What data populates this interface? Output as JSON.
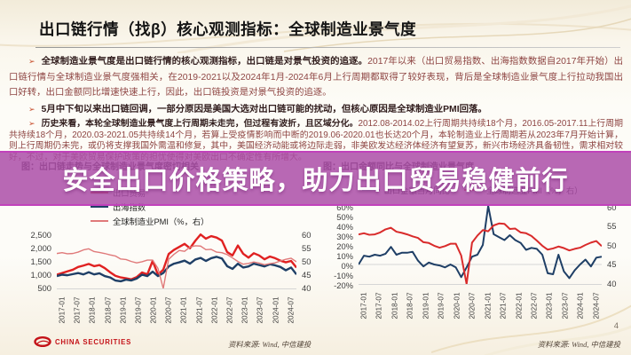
{
  "slide": {
    "title": "出口链行情（找β）核心观测指标：全球制造业景气度",
    "bullet_marker": "➢",
    "bullets": [
      {
        "lead": "全球制造业景气度是出口链行情的核心观测指标，出口链是对景气投资的追逐。",
        "rest": "2017年以来（出口贸易指数、出海指数数据自2017年开始）出口链行情与全球制造业景气度强相关，在2019-2021以及2024年1月-2024年6月上行周期都取得了较好表现，背后是全球制造业景气度上行拉动我国出口好转，出口金额同比增速快速上行，因此，出口链投资是对景气投资的追逐。"
      },
      {
        "lead": "5月中下旬以来出口链回调，一部分原因是美国大选对出口链可能的扰动，但核心原因是全球制造业PMI回落。",
        "rest": ""
      },
      {
        "lead": "历史来看，本轮全球制造业景气度上行周期未走完，但过程有波折，且区域分化。",
        "rest": "2012.08-2014.02上行周期共持续18个月，2016.05-2017.11上行周期共持续18个月，2020.03-2021.05共持续14个月，若算上受疫情影响而中断的2019.06-2020.01也长达20个月，本轮制造业上行周期若从2023年7月开始计算，则上行周期仍未完，或仍将支撑我国外需温和修复，其中，美国经济动能或将边际走弱，非美欧发达经济体经济有望复苏，新兴市场经济具备韧性，需求相对较好，不过，对于美欧贸易保护政策的担忧使得对美欧出口不确定性有所增大。"
      }
    ]
  },
  "banner": {
    "text": "安全出口价格策略，助力出口贸易稳健前行",
    "overlay_color": "#ac4ea8"
  },
  "footer": {
    "logo_text": "CHINA SECURITIES",
    "source_left": "资料来源: Wind, 中信建投",
    "source_right": "资料来源: Wind, 中信建投",
    "page_number": "4"
  },
  "chart_data": [
    {
      "type": "line",
      "title": "图：出口链走势与全球制造业景气度密切相关",
      "legend_position": "top-left-stacked",
      "x_sampling": "2017-01 to 2024-07, bimonthly (46 points)",
      "x_tick_labels": [
        "2017-01",
        "2017-07",
        "2018-01",
        "2018-07",
        "2019-01",
        "2019-07",
        "2020-01",
        "2020-07",
        "2021-01",
        "2021-07",
        "2022-01",
        "2022-07",
        "2023-01",
        "2023-07",
        "2024-01",
        "2024-07"
      ],
      "left_axis": {
        "min": 500,
        "max": 2500,
        "ticks": [
          "2,500",
          "2,000",
          "1,500",
          "1,000",
          "500"
        ]
      },
      "right_axis": {
        "min": 40,
        "max": 60,
        "ticks": [
          "60",
          "55",
          "50",
          "45",
          "40"
        ]
      },
      "gridline_values": [],
      "series": [
        {
          "name": "出口贸易",
          "axis": "left",
          "color": "#e02121",
          "width": 2.4,
          "values": [
            1000,
            1060,
            1120,
            1180,
            1280,
            1330,
            1390,
            1310,
            1350,
            1240,
            1090,
            960,
            900,
            870,
            830,
            910,
            1080,
            1010,
            1500,
            1000,
            1180,
            1750,
            1900,
            2010,
            2120,
            1960,
            2230,
            2460,
            2310,
            2400,
            2350,
            2240,
            1820,
            1700,
            2060,
            1760,
            1620,
            1780,
            1700,
            1560,
            1660,
            1600,
            1510,
            1450,
            1500,
            1260
          ]
        },
        {
          "name": "出海指数",
          "axis": "left",
          "color": "#1f3f66",
          "width": 2.4,
          "values": [
            950,
            1000,
            980,
            1020,
            1060,
            1010,
            1090,
            1010,
            1050,
            950,
            900,
            790,
            760,
            820,
            790,
            860,
            1000,
            950,
            1110,
            950,
            1060,
            1300,
            1400,
            1450,
            1510,
            1400,
            1550,
            1610,
            1500,
            1600,
            1650,
            1590,
            1310,
            1210,
            1400,
            1260,
            1300,
            1400,
            1350,
            1300,
            1380,
            1340,
            1280,
            1160,
            1260,
            1010
          ]
        },
        {
          "name": "全球制造业PMI（%，右）",
          "axis": "right",
          "color": "#e07a7a",
          "width": 1.4,
          "values": [
            52.7,
            53.0,
            52.6,
            52.7,
            53.2,
            54.0,
            54.4,
            53.4,
            53.1,
            52.7,
            52.2,
            51.8,
            50.7,
            50.5,
            49.8,
            49.3,
            49.7,
            50.3,
            50.3,
            47.3,
            40.0,
            50.6,
            52.4,
            53.8,
            53.5,
            55.0,
            55.5,
            55.4,
            54.1,
            54.2,
            53.2,
            53.0,
            52.3,
            51.1,
            49.8,
            48.8,
            49.1,
            49.6,
            49.2,
            48.6,
            49.0,
            49.3,
            50.0,
            50.6,
            51.0,
            49.7
          ]
        }
      ]
    },
    {
      "type": "line",
      "title": "图：出口金额同比与全球制造业景气度",
      "legend_position": "top-center-row",
      "x_sampling": "2017-01 to 2024-07, bimonthly (46 points)",
      "x_tick_labels": [
        "2017-01",
        "2017-07",
        "2018-01",
        "2018-07",
        "2019-01",
        "2019-07",
        "2020-01",
        "2020-07",
        "2021-01",
        "2021-07",
        "2022-01",
        "2022-07",
        "2023-01",
        "2023-07",
        "2024-01",
        "2024-07"
      ],
      "left_axis": {
        "min": -20,
        "max": 60,
        "ticks": [
          "60%",
          "50%",
          "40%",
          "30%",
          "20%",
          "10%",
          "0%",
          "-10%",
          "-20%"
        ]
      },
      "right_axis": {
        "min": 40,
        "max": 60,
        "ticks": [
          "60",
          "55",
          "50",
          "45",
          "40"
        ]
      },
      "gridline_values": [
        0
      ],
      "series": [
        {
          "name": "出口金额当月同比",
          "axis": "left",
          "color": "#1f3f66",
          "width": 2,
          "values": [
            0,
            9,
            8,
            10,
            9,
            11,
            18,
            10,
            12,
            12,
            13,
            4,
            -2,
            2,
            0,
            -1,
            -3,
            0,
            -3,
            -13,
            -3,
            8,
            10,
            20,
            60,
            31,
            28,
            25,
            30,
            25,
            22,
            15,
            17,
            16,
            10,
            -9,
            -10,
            10,
            -7,
            -14,
            -6,
            0,
            5,
            -2,
            7,
            8
          ]
        },
        {
          "name": "全球制造业PMI（%，右）",
          "axis": "right",
          "color": "#d92b2b",
          "width": 2,
          "values": [
            52.7,
            53.0,
            52.6,
            52.7,
            53.2,
            54.0,
            54.4,
            53.4,
            53.1,
            52.7,
            52.2,
            51.8,
            50.7,
            50.5,
            49.8,
            49.3,
            49.7,
            50.3,
            50.3,
            47.3,
            40.0,
            50.6,
            52.4,
            53.8,
            53.5,
            55.0,
            55.5,
            55.4,
            54.1,
            54.2,
            53.2,
            53.0,
            52.3,
            51.1,
            49.8,
            48.8,
            49.1,
            49.6,
            49.2,
            48.6,
            49.0,
            49.3,
            50.0,
            50.6,
            51.0,
            49.7
          ]
        }
      ]
    }
  ]
}
